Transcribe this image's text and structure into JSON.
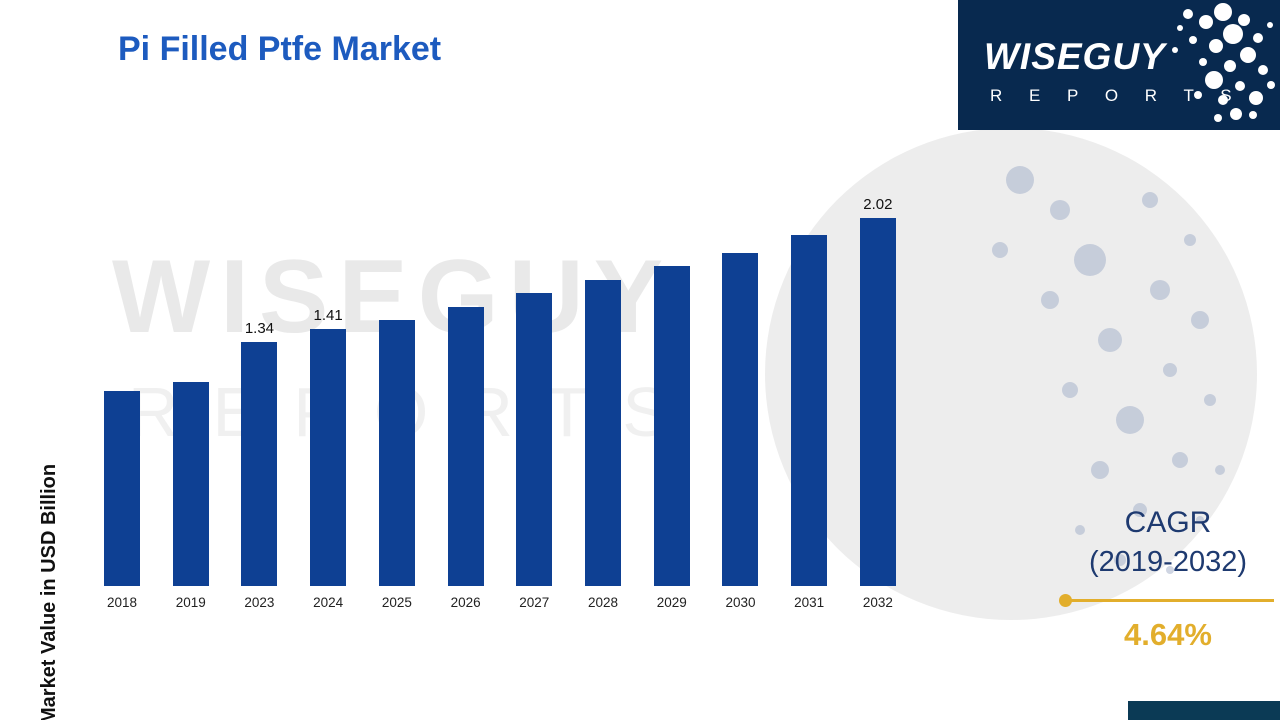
{
  "page_title": "Pi Filled Ptfe Market",
  "logo": {
    "brand": "WISEGUY",
    "sub": "R E P O R T S"
  },
  "watermark": {
    "line1": "WISEGUY",
    "line2": "REPORTS"
  },
  "cagr": {
    "label_line1": "CAGR",
    "label_line2": "(2019-2032)",
    "value": "4.64%"
  },
  "colors": {
    "bar": "#0e4093",
    "title": "#1d5bbf",
    "navy": "#08294f",
    "gold": "#e2ae2c"
  },
  "chart_data": {
    "type": "bar",
    "title": "Pi Filled Ptfe Market",
    "ylabel": "Market Value in USD Billion",
    "unit": "USD Billion",
    "categories": [
      "2018",
      "2019",
      "2023",
      "2024",
      "2025",
      "2026",
      "2027",
      "2028",
      "2029",
      "2030",
      "2031",
      "2032"
    ],
    "values": [
      1.07,
      1.12,
      1.34,
      1.41,
      1.46,
      1.53,
      1.61,
      1.68,
      1.76,
      1.83,
      1.93,
      2.02
    ],
    "data_labels": [
      null,
      null,
      "1.34",
      "1.41",
      null,
      null,
      null,
      null,
      null,
      null,
      null,
      "2.02"
    ],
    "ylim": [
      0,
      2.4
    ],
    "grid": false,
    "legend": false
  }
}
